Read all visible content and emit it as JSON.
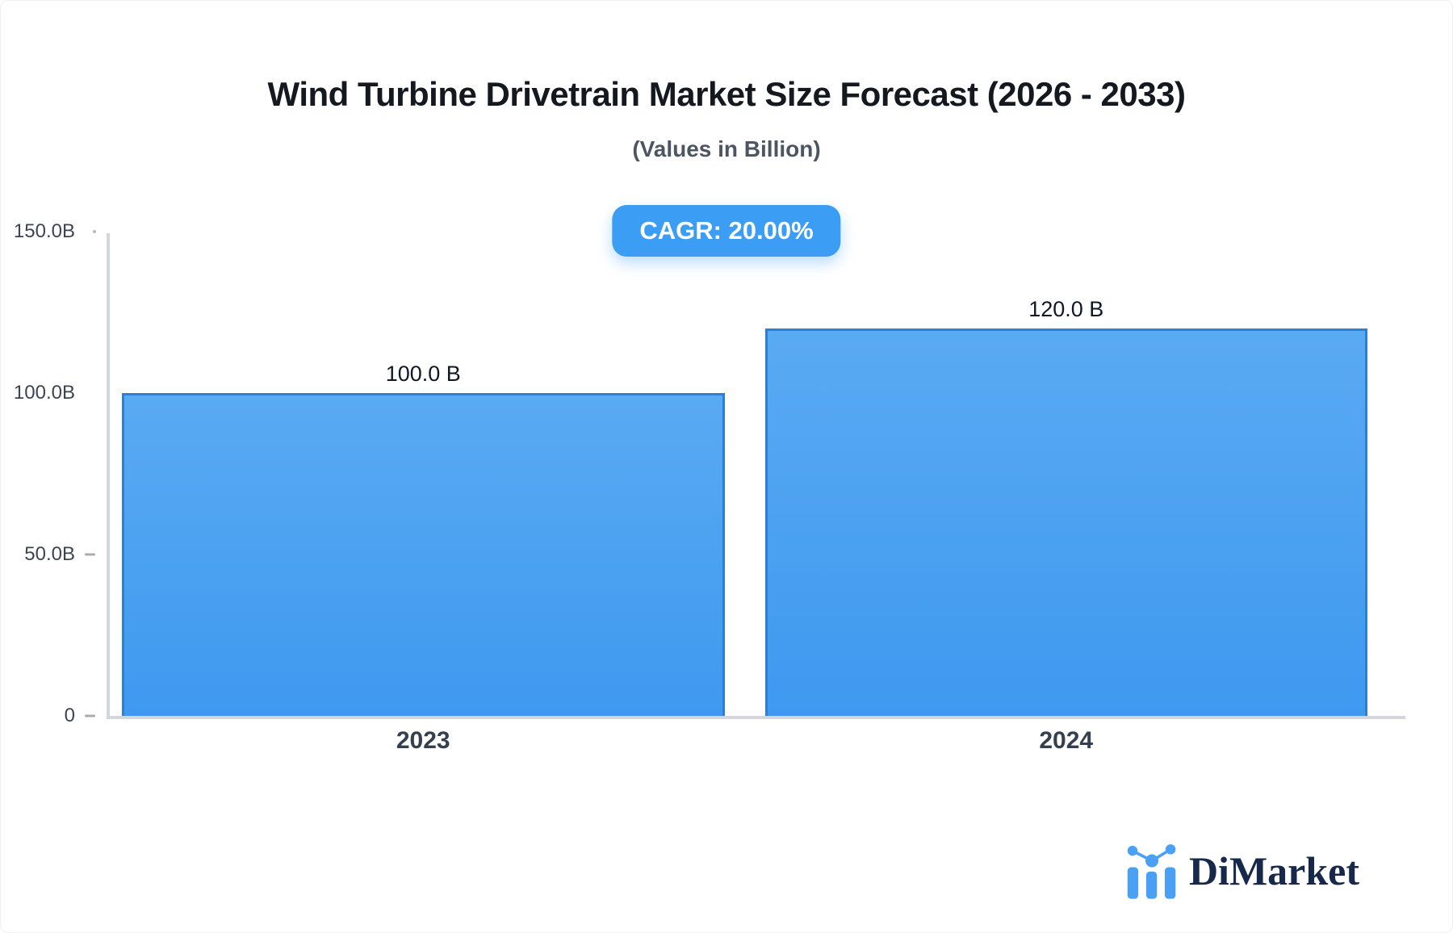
{
  "header": {
    "title": "Wind Turbine Drivetrain Market Size Forecast (2026 - 2033)",
    "subtitle": "(Values in Billion)"
  },
  "badge": {
    "label": "CAGR: 20.00%",
    "background": "#3b9df3",
    "text_color": "#ffffff"
  },
  "chart_data": {
    "type": "bar",
    "title": "Wind Turbine Drivetrain Market Size Forecast (2026 - 2033)",
    "subtitle": "(Values in Billion)",
    "categories": [
      "2023",
      "2024"
    ],
    "values": [
      100.0,
      120.0
    ],
    "value_labels": [
      "100.0 B",
      "120.0 B"
    ],
    "xlabel": "",
    "ylabel": "",
    "ylim": [
      0,
      150
    ],
    "y_ticks": [
      {
        "label": "150.0B",
        "value": 150,
        "mark": "dot"
      },
      {
        "label": "100.0B",
        "value": 100,
        "mark": "none"
      },
      {
        "label": "50.0B",
        "value": 50,
        "mark": "dash"
      },
      {
        "label": "0",
        "value": 0,
        "mark": "dash"
      }
    ],
    "grid": false,
    "legend": false,
    "bar_fill_top": "#59aaf2",
    "bar_fill_bottom": "#3f99f0",
    "bar_border_color": "#2d7fd3",
    "axis_color": "#d3d6db"
  },
  "footer": {
    "brand": "DiMarket",
    "logo_icon": "bar-chart-logo-icon",
    "icon_color": "#4aa0f5",
    "text_color": "#16294a"
  }
}
